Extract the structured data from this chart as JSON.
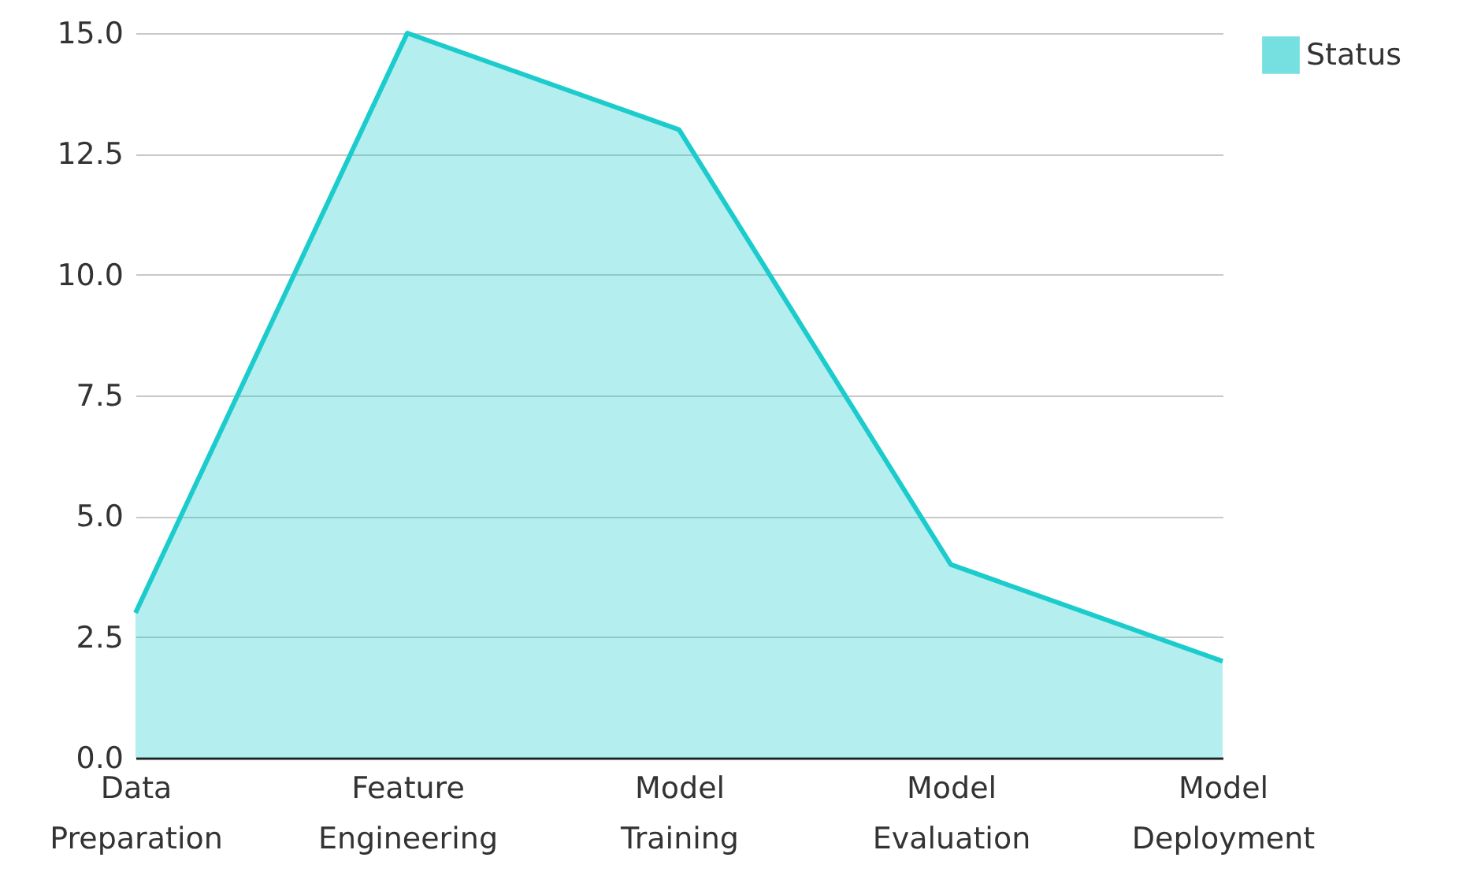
{
  "chart_data": {
    "type": "area",
    "categories": [
      "Data Preparation",
      "Feature Engineering",
      "Model Training",
      "Model Evaluation",
      "Model Deployment"
    ],
    "series": [
      {
        "name": "Status",
        "color": "#1ccccc",
        "values": [
          3,
          15,
          13,
          4,
          2
        ]
      }
    ],
    "ylim": [
      0,
      15
    ],
    "yticks": [
      {
        "value": 0,
        "label": "0.0"
      },
      {
        "value": 2.5,
        "label": "2.5"
      },
      {
        "value": 5,
        "label": "5.0"
      },
      {
        "value": 7.5,
        "label": "7.5"
      },
      {
        "value": 10,
        "label": "10.0"
      },
      {
        "value": 12.5,
        "label": "12.5"
      },
      {
        "value": 15,
        "label": "15.0"
      }
    ],
    "grid": "y",
    "legend": "top right"
  }
}
